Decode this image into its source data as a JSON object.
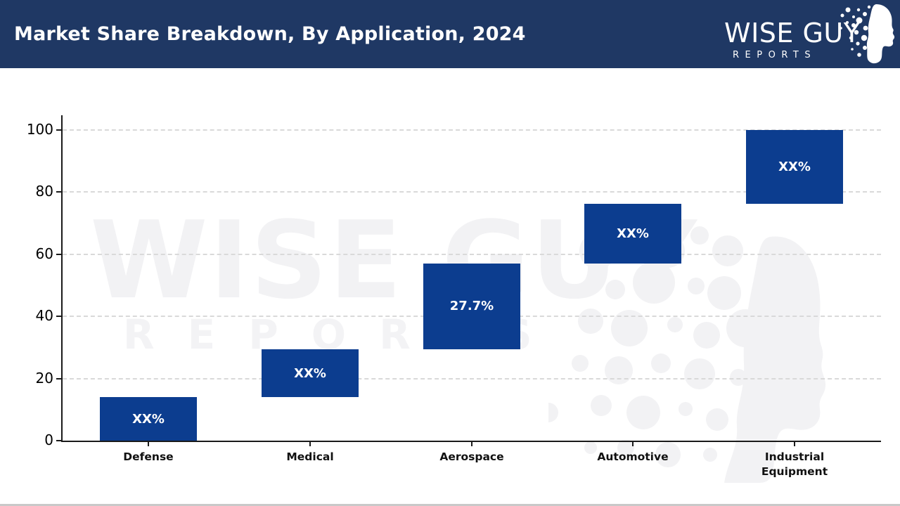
{
  "header": {
    "title": "Market Share Breakdown, By Application, 2024",
    "logo": {
      "line1": "WISE GUY",
      "line2": "R E P O R T S"
    }
  },
  "watermark": {
    "line1": "WISE GUY",
    "line2": "REPORTS"
  },
  "colors": {
    "header_bg": "#1f3864",
    "bar": "#0c3d8f",
    "bar_label": "#ffffff",
    "axis": "#1a1a1a",
    "gridline": "#d9d9d9",
    "watermark": "#f2f2f4"
  },
  "chart_data": {
    "type": "bar",
    "subtype": "waterfall-floating-bars",
    "title": "Market Share Breakdown, By Application, 2024",
    "xlabel": "",
    "ylabel": "",
    "ylim": [
      0,
      105
    ],
    "yticks": [
      0,
      20,
      40,
      60,
      80,
      100
    ],
    "grid": "horizontal-dashed",
    "categories": [
      "Defense",
      "Medical",
      "Aerospace",
      "Automotive",
      "Industrial Equipment"
    ],
    "segments": [
      {
        "category": "Defense",
        "start": 0,
        "end": 14,
        "span": 14,
        "label": "XX%"
      },
      {
        "category": "Medical",
        "start": 14,
        "end": 29.4,
        "span": 15.4,
        "label": "XX%"
      },
      {
        "category": "Aerospace",
        "start": 29.4,
        "end": 57.1,
        "span": 27.7,
        "label": "27.7%"
      },
      {
        "category": "Automotive",
        "start": 57.1,
        "end": 76.2,
        "span": 19.1,
        "label": "XX%"
      },
      {
        "category": "Industrial Equipment",
        "start": 76.2,
        "end": 100,
        "span": 23.8,
        "label": "XX%"
      }
    ]
  }
}
